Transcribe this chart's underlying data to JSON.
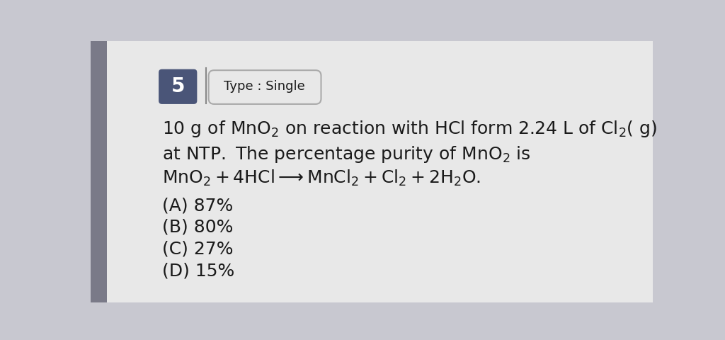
{
  "bg_color": "#c8c8d0",
  "card_color": "#e8e8e8",
  "question_num": "5",
  "question_num_bg": "#4a5578",
  "question_num_color": "#ffffff",
  "type_label": "Type : Single",
  "type_border": "#aaaaaa",
  "divider_color": "#888888",
  "options": [
    "(A) 87%",
    "(B) 80%",
    "(C) 27%",
    "(D) 15%"
  ],
  "text_color": "#1a1a1a",
  "font_size_header": 15,
  "font_size_main": 18,
  "font_size_options": 18
}
